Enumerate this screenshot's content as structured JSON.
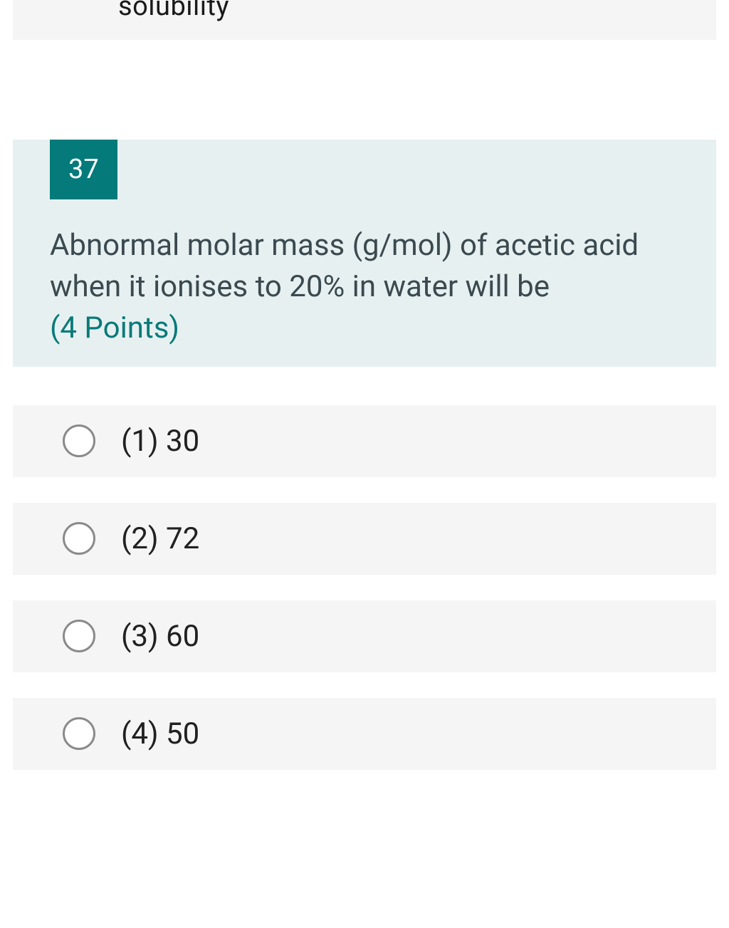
{
  "previous_fragment": {
    "text": "solubility"
  },
  "question": {
    "number": "37",
    "text": "Abnormal molar mass (g/mol) of acetic acid when it ionises to 20% in water will be",
    "points_label": "(4 Points)"
  },
  "options": [
    {
      "label": "(1) 30"
    },
    {
      "label": "(2) 72"
    },
    {
      "label": "(3) 60"
    },
    {
      "label": "(4) 50"
    }
  ],
  "colors": {
    "badge_bg": "#047a7a",
    "badge_fg": "#ffffff",
    "question_bg": "#e7f0f0",
    "option_bg": "#f5f5f5",
    "points_color": "#0a7a7a",
    "text_color": "#3b4a50",
    "radio_border": "#8a8a8a"
  }
}
